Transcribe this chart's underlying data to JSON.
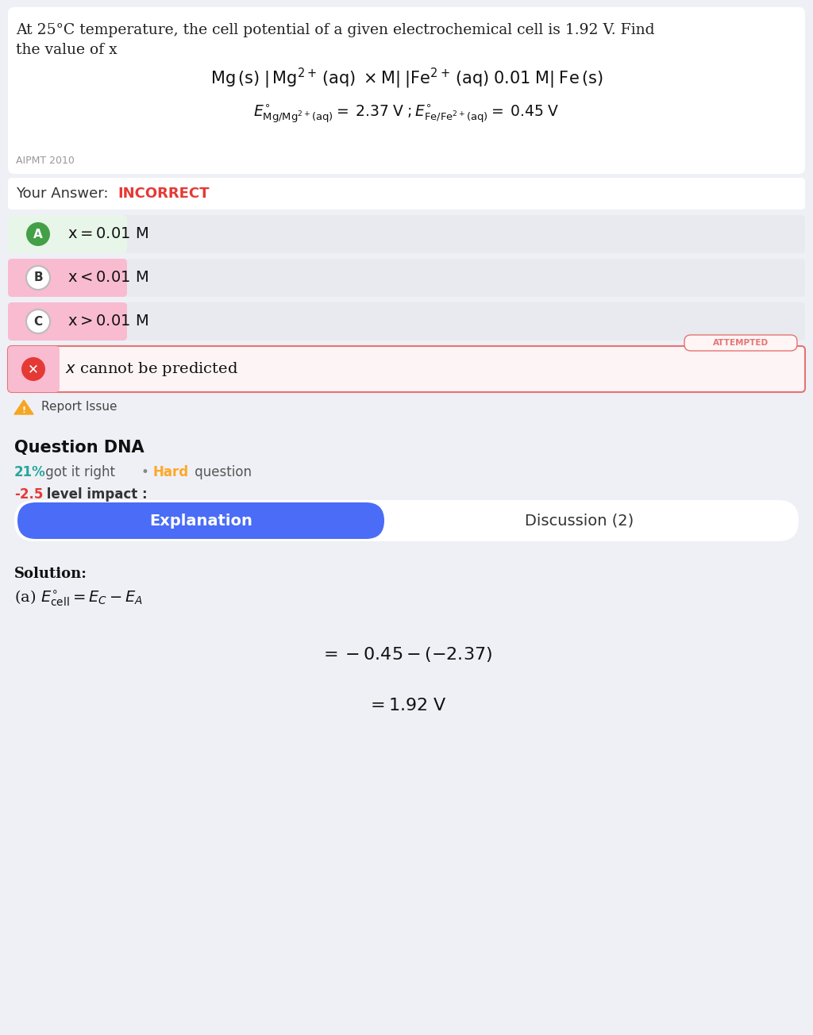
{
  "bg_color": "#eef0f5",
  "white": "#ffffff",
  "question_text_line1": "At 25°C temperature, the cell potential of a given electrochemical cell is 1.92 V. Find",
  "question_text_line2": "the value of x",
  "aipmt_label": "AIPMT 2010",
  "your_answer_label": "Your Answer:  ",
  "incorrect_text": "INCORRECT",
  "incorrect_color": "#e53935",
  "option_A_bg": "#e8f5e9",
  "option_BCD_left_bg": "#f8bbd0",
  "option_row_bg": "#e8eaf0",
  "option_A_circle_color": "#43a047",
  "option_D_circle_color": "#e53935",
  "attempted_color": "#e57373",
  "attempted_text": "ATTEMPTED",
  "report_text": "Report Issue",
  "dna_title": "Question DNA",
  "pct_text": "21%",
  "pct_color": "#26a69a",
  "hard_text": "Hard",
  "hard_color": "#ffa726",
  "level_impact_minus_color": "#e53935",
  "explanation_btn_color": "#4a6cf7",
  "explanation_text": "Explanation",
  "discussion_text": "Discussion (2)"
}
